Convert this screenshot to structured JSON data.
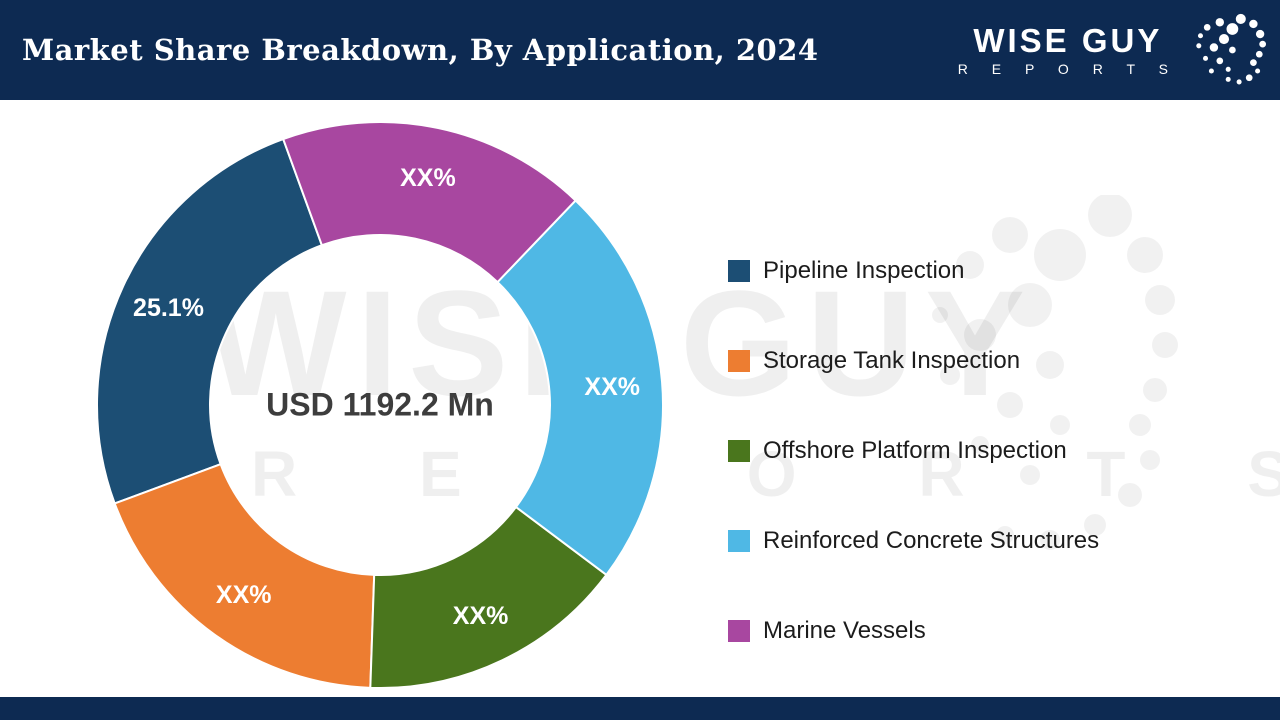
{
  "header": {
    "title": "Market Share Breakdown, By Application, 2024",
    "logo": {
      "line1": "WISE GUY",
      "line2": "R E P O R T S"
    }
  },
  "watermark": {
    "line1": "WISE GUY",
    "line2": "R E P O R T S"
  },
  "chart_data": {
    "type": "pie",
    "subtype": "donut",
    "title": "Market Share Breakdown, By Application, 2024",
    "center_label": "USD 1192.2 Mn",
    "start_angle_deg": 110,
    "direction": "counterclockwise",
    "legend_position": "right",
    "series": [
      {
        "name": "Pipeline Inspection",
        "value": 25.1,
        "label": "25.1%",
        "color": "#1c4e74"
      },
      {
        "name": "Storage Tank Inspection",
        "value": 18.8,
        "label": "XX%",
        "color": "#ed7d31"
      },
      {
        "name": "Offshore Platform Inspection",
        "value": 15.3,
        "label": "XX%",
        "color": "#4a761d"
      },
      {
        "name": "Reinforced Concrete Structures",
        "value": 23.1,
        "label": "XX%",
        "color": "#4fb8e5"
      },
      {
        "name": "Marine Vessels",
        "value": 17.7,
        "label": "XX%",
        "color": "#a847a0"
      }
    ]
  },
  "colors": {
    "header_bg": "#0d2a52",
    "footer_bg": "#0d2a52",
    "center_text": "#3d3d3d",
    "legend_text": "#1c1c1c",
    "segment_label_text": "#ffffff"
  }
}
